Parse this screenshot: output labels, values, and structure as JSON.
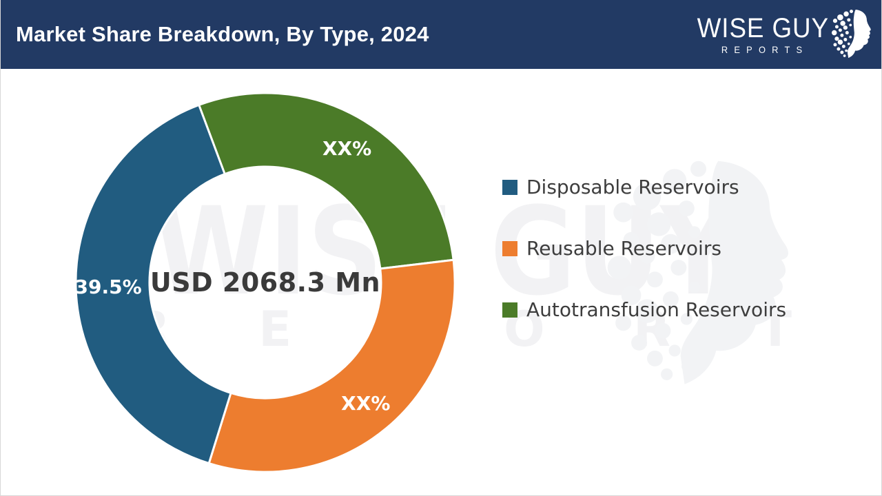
{
  "header": {
    "title": "Market Share Breakdown, By Type, 2024",
    "background_color": "#223A64",
    "logo": {
      "wordmark": "WISE GUY",
      "subtitle": "REPORTS"
    }
  },
  "watermark": {
    "wordmark": "WISE GUY",
    "subtitle": "R E P O R T S"
  },
  "chart_data": {
    "type": "pie",
    "subtype": "donut",
    "title": "Market Share Breakdown, By Type, 2024",
    "center_label": "USD 2068.3 Mn",
    "legend_position": "right",
    "start_angle_deg": 110.5,
    "direction": "clockwise",
    "inner_radius_ratio": 0.61,
    "segments": [
      {
        "name": "Disposable Reservoirs",
        "display_label": "39.5%",
        "pct": 39.5,
        "color": "#215C80"
      },
      {
        "name": "Reusable Reservoirs",
        "display_label": "XX%",
        "pct": 31.7,
        "color": "#ED7D2F"
      },
      {
        "name": "Autotransfusion Reservoirs",
        "display_label": "XX%",
        "pct": 28.8,
        "color": "#4B7B28"
      }
    ],
    "draw_order": [
      2,
      1,
      0
    ]
  }
}
